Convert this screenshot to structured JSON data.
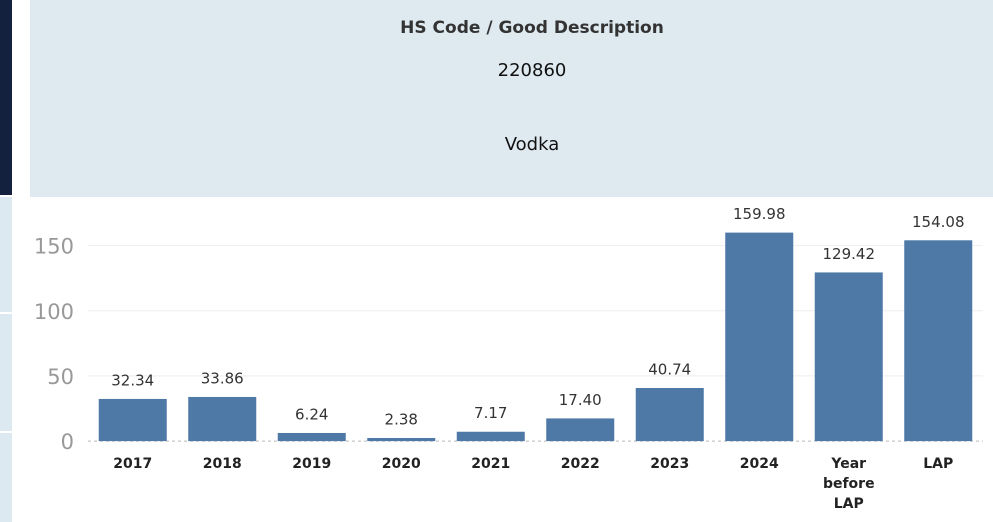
{
  "header": {
    "title": "HS Code / Good Description",
    "code": "220860",
    "description": "Vodka"
  },
  "chart_data": {
    "type": "bar",
    "categories": [
      "2017",
      "2018",
      "2019",
      "2020",
      "2021",
      "2022",
      "2023",
      "2024",
      "Year before LAP",
      "LAP"
    ],
    "values": [
      32.34,
      33.86,
      6.24,
      2.38,
      7.17,
      17.4,
      40.74,
      159.98,
      129.42,
      154.08
    ],
    "value_labels": [
      "32.34",
      "33.86",
      "6.24",
      "2.38",
      "7.17",
      "17.40",
      "40.74",
      "159.98",
      "129.42",
      "154.08"
    ],
    "color": "#4e79a7",
    "ylim": [
      -3,
      185
    ],
    "yticks": [
      0,
      50,
      100,
      150
    ],
    "grid": true
  }
}
